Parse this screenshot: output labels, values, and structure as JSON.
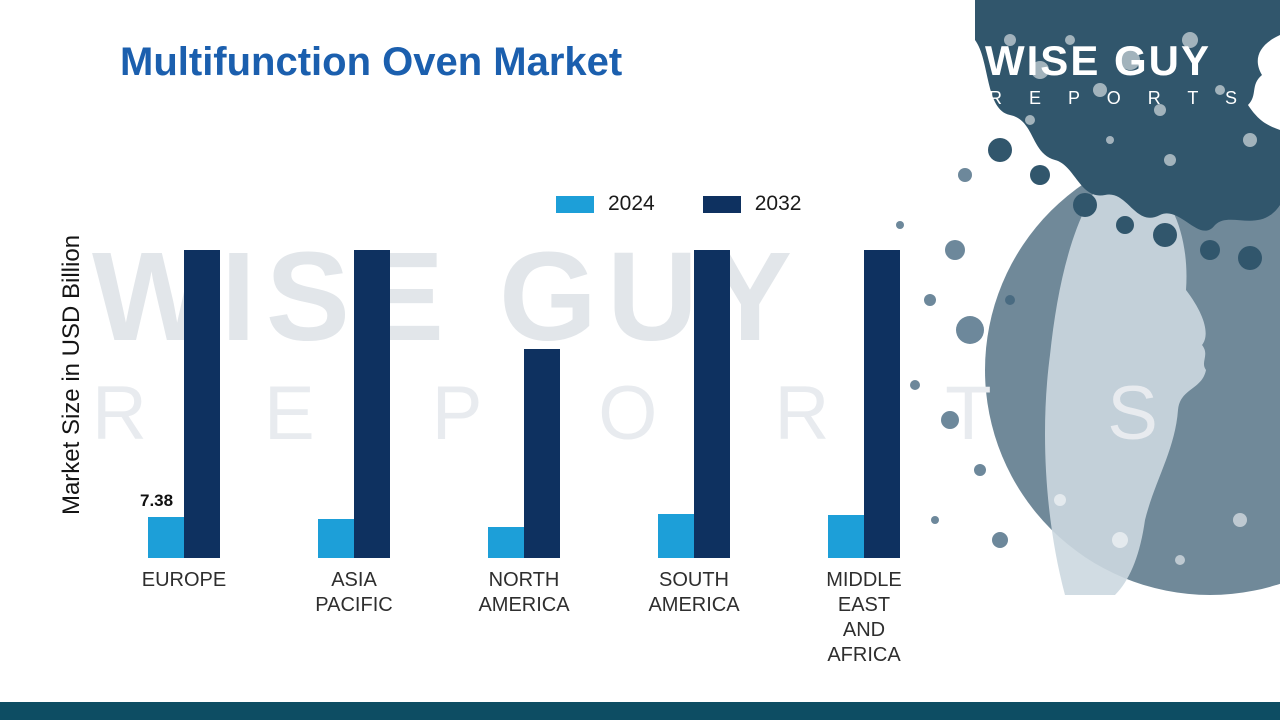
{
  "page": {
    "title": "Multifunction Oven Market",
    "title_color": "#1b5fae",
    "background_color": "#ffffff",
    "bottom_bar_color": "#0d4d63"
  },
  "logo": {
    "line1": "WISE GUY",
    "line2": "R E P O R T S"
  },
  "watermark": {
    "line1": "WISE GUY",
    "line2": "R E P O R T S"
  },
  "chart_data": {
    "type": "bar",
    "title": "Multifunction Oven Market",
    "ylabel": "Market Size in USD Billion",
    "xlabel": "",
    "ylim": [
      0,
      60
    ],
    "grid": false,
    "legend_position": "top",
    "categories": [
      "EUROPE",
      "ASIA\nPACIFIC",
      "NORTH\nAMERICA",
      "SOUTH\nAMERICA",
      "MIDDLE\nEAST\nAND\nAFRICA"
    ],
    "series": [
      {
        "name": "2024",
        "color": "#1d9fd8",
        "values": [
          7.38,
          7.1,
          5.6,
          8.0,
          7.9
        ]
      },
      {
        "name": "2032",
        "color": "#0e3160",
        "values": [
          56,
          56,
          38,
          56,
          56
        ]
      }
    ],
    "data_labels": [
      {
        "category_index": 0,
        "series_index": 0,
        "text": "7.38"
      }
    ]
  }
}
